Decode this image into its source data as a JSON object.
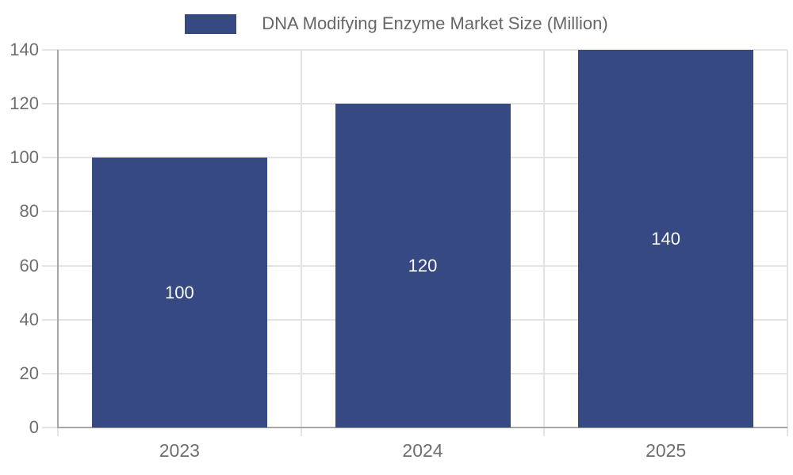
{
  "chart_data": {
    "type": "bar",
    "title": "DNA Modifying Enzyme Market Size (Million)",
    "categories": [
      "2023",
      "2024",
      "2025"
    ],
    "values": [
      100,
      120,
      140
    ],
    "bar_labels": [
      "100",
      "120",
      "140"
    ],
    "xlabel": "",
    "ylabel": "",
    "ylim": [
      0,
      140
    ],
    "yticks": [
      0,
      20,
      40,
      60,
      80,
      100,
      120,
      140
    ],
    "grid": true,
    "legend_position": "top-center",
    "bar_label_position": "center-of-bar",
    "colors": {
      "bar": "#374982",
      "bar_label": "#fafafa",
      "axis_line": "#a6a6a6",
      "grid_line": "#e3e3e3",
      "tick_label": "#6e6e6e",
      "title_text": "#666666",
      "background": "#ffffff"
    }
  }
}
